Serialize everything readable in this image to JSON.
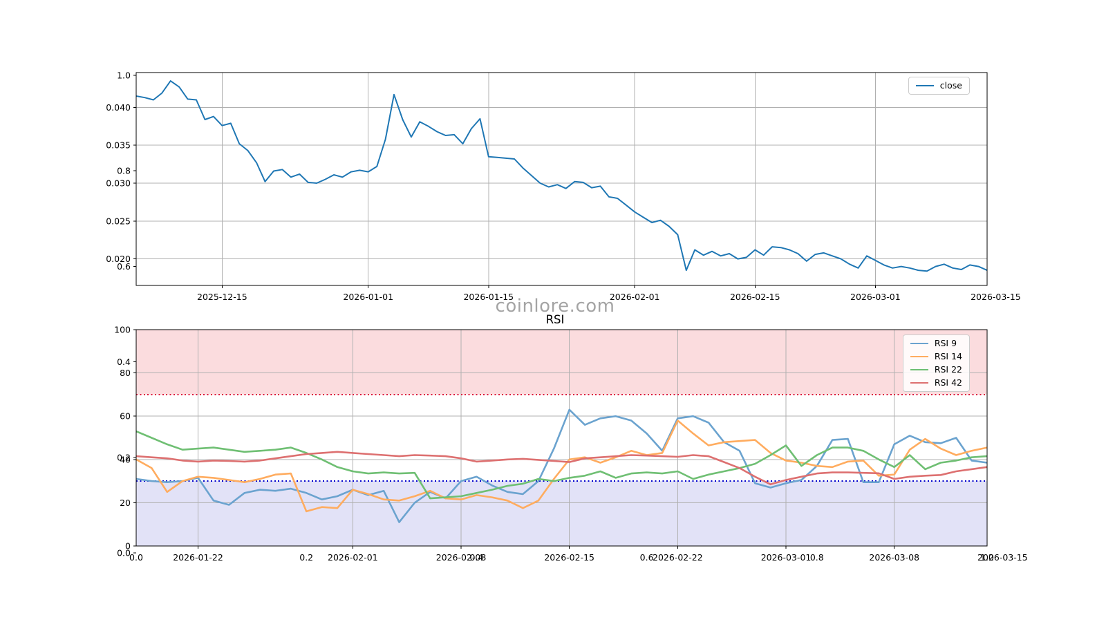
{
  "watermark": "coinlore.com",
  "colors": {
    "background": "#ffffff",
    "grid": "#b0b0b0",
    "spine": "#000000",
    "tick_label": "#000000",
    "watermark": "#8e8e8e",
    "close_line": "#1f77b4",
    "rsi9_line": "#6ba3cf",
    "rsi14_line": "#ffac5f",
    "rsi22_line": "#6fbf73",
    "rsi42_line": "#dd7070",
    "overbought_band": "#fbdcde",
    "oversold_band": "#e2e2f7",
    "overbought_line": "#dc143c",
    "oversold_line": "#0000cd"
  },
  "overlay_axis": {
    "x_ticks": [
      {
        "label": "0.0",
        "value": 0.0
      },
      {
        "label": "0.2",
        "value": 0.2
      },
      {
        "label": "0.4",
        "value": 0.4
      },
      {
        "label": "0.6",
        "value": 0.6
      },
      {
        "label": "0.8",
        "value": 0.8
      },
      {
        "label": "1.0",
        "value": 1.0
      }
    ],
    "y_ticks": [
      {
        "label": "0.0",
        "value": 0.0
      },
      {
        "label": "0.2",
        "value": 0.2
      },
      {
        "label": "0.4",
        "value": 0.4
      },
      {
        "label": "0.6",
        "value": 0.6
      },
      {
        "label": "0.8",
        "value": 0.8
      },
      {
        "label": "1.0",
        "value": 1.0
      }
    ]
  },
  "chart_data": [
    {
      "type": "line",
      "title": "",
      "x_range": [
        "2025-12-05",
        "2026-03-14"
      ],
      "ylim": [
        0.0165,
        0.0446
      ],
      "grid": true,
      "legend_position": "upper right",
      "x_ticks": [
        {
          "label": "2025-12-15",
          "index": 10
        },
        {
          "label": "2026-01-01",
          "index": 27
        },
        {
          "label": "2026-01-15",
          "index": 41
        },
        {
          "label": "2026-02-01",
          "index": 58
        },
        {
          "label": "2026-02-15",
          "index": 72
        },
        {
          "label": "2026-03-01",
          "index": 86
        },
        {
          "label": "2026-03-15",
          "index": 100
        }
      ],
      "y_ticks": [
        {
          "label": "0.020",
          "value": 0.02
        },
        {
          "label": "0.025",
          "value": 0.025
        },
        {
          "label": "0.030",
          "value": 0.03
        },
        {
          "label": "0.035",
          "value": 0.035
        },
        {
          "label": "0.040",
          "value": 0.04
        }
      ],
      "series": [
        {
          "name": "close",
          "color": "#1f77b4",
          "width": 2,
          "values": [
            0.0415,
            0.0413,
            0.041,
            0.0419,
            0.0435,
            0.0427,
            0.0411,
            0.041,
            0.0384,
            0.0388,
            0.0376,
            0.0379,
            0.0352,
            0.0343,
            0.0327,
            0.0302,
            0.0316,
            0.0318,
            0.0308,
            0.0312,
            0.0301,
            0.03,
            0.0305,
            0.0311,
            0.0308,
            0.0315,
            0.0317,
            0.0315,
            0.0322,
            0.0358,
            0.0417,
            0.0384,
            0.0361,
            0.0381,
            0.0375,
            0.0368,
            0.0363,
            0.0364,
            0.0352,
            0.0372,
            0.0385,
            0.0335,
            0.0334,
            0.0333,
            0.0332,
            0.032,
            0.031,
            0.03,
            0.0295,
            0.0298,
            0.0293,
            0.0302,
            0.0301,
            0.0294,
            0.0296,
            0.0282,
            0.028,
            0.0271,
            0.0262,
            0.0255,
            0.0248,
            0.0251,
            0.0243,
            0.0232,
            0.0185,
            0.0212,
            0.0205,
            0.021,
            0.0204,
            0.0207,
            0.02,
            0.0202,
            0.0212,
            0.0205,
            0.0216,
            0.0215,
            0.0212,
            0.0207,
            0.0197,
            0.0206,
            0.0208,
            0.0204,
            0.02,
            0.0193,
            0.0188,
            0.0204,
            0.0198,
            0.0192,
            0.0188,
            0.019,
            0.0188,
            0.0185,
            0.0184,
            0.019,
            0.0193,
            0.0188,
            0.0186,
            0.0192,
            0.019,
            0.0185
          ]
        }
      ]
    },
    {
      "type": "line",
      "title": "RSI",
      "x_range": [
        "2026-01-18",
        "2026-03-14"
      ],
      "ylim": [
        0,
        100
      ],
      "grid": true,
      "legend_position": "upper right",
      "bands": [
        {
          "from": 70,
          "to": 100,
          "color": "#fbdcde",
          "meaning": "overbought"
        },
        {
          "from": 0,
          "to": 30,
          "color": "#e2e2f7",
          "meaning": "oversold"
        }
      ],
      "hlines": [
        {
          "y": 70,
          "color": "#dc143c",
          "style": "dotted"
        },
        {
          "y": 30,
          "color": "#0000cd",
          "style": "dotted"
        }
      ],
      "x_ticks": [
        {
          "label": "2026-01-22",
          "index": 4
        },
        {
          "label": "2026-02-01",
          "index": 14
        },
        {
          "label": "2026-02-08",
          "index": 21
        },
        {
          "label": "2026-02-15",
          "index": 28
        },
        {
          "label": "2026-02-22",
          "index": 35
        },
        {
          "label": "2026-03-01",
          "index": 42
        },
        {
          "label": "2026-03-08",
          "index": 49
        },
        {
          "label": "2026-03-15",
          "index": 56
        }
      ],
      "y_ticks": [
        {
          "label": "0",
          "value": 0
        },
        {
          "label": "20",
          "value": 20
        },
        {
          "label": "40",
          "value": 40
        },
        {
          "label": "60",
          "value": 60
        },
        {
          "label": "80",
          "value": 80
        },
        {
          "label": "100",
          "value": 100
        }
      ],
      "series": [
        {
          "name": "RSI 9",
          "color": "#6ba3cf",
          "width": 2.6,
          "values": [
            31,
            30,
            29.5,
            30,
            31.5,
            21,
            19,
            24.5,
            26,
            25.5,
            26.5,
            24.5,
            21.5,
            23,
            26,
            23.5,
            25.5,
            11,
            20,
            25,
            22,
            30,
            32,
            28,
            25,
            24,
            30,
            45,
            63,
            56,
            59,
            60,
            58,
            52,
            44,
            59,
            60,
            57,
            48,
            44,
            29,
            27,
            29,
            30.5,
            37,
            49,
            49.5,
            29.5,
            29.5,
            47,
            51,
            48,
            47.5,
            50,
            39.5,
            38.5
          ]
        },
        {
          "name": "RSI 14",
          "color": "#ffac5f",
          "width": 2.6,
          "values": [
            40,
            36,
            25,
            30,
            32,
            31.5,
            30.5,
            29.5,
            31,
            33,
            33.5,
            16,
            18,
            17.5,
            26,
            24,
            21.5,
            21,
            23,
            25.5,
            22,
            21.5,
            23.5,
            22.5,
            21,
            17.5,
            21,
            31,
            40,
            41,
            38.5,
            41,
            44,
            42,
            43,
            58,
            52,
            46.5,
            48,
            48.5,
            49,
            43,
            39.5,
            38.5,
            37,
            36.5,
            39,
            39.5,
            32.5,
            33,
            44.5,
            49.5,
            45,
            42,
            44,
            45.5
          ]
        },
        {
          "name": "RSI 22",
          "color": "#6fbf73",
          "width": 2.6,
          "values": [
            53,
            50,
            47,
            44.5,
            45,
            45.5,
            44.5,
            43.5,
            44,
            44.5,
            45.5,
            43,
            40,
            36.5,
            34.5,
            33.5,
            34,
            33.5,
            33.8,
            22,
            22.5,
            23,
            24.5,
            26,
            27.8,
            28.8,
            31,
            30,
            31.5,
            32.5,
            34.5,
            31.5,
            33.5,
            34,
            33.5,
            34.5,
            31,
            33,
            34.5,
            36,
            38,
            42,
            46.5,
            37,
            42,
            45.5,
            45.5,
            44,
            40,
            36.5,
            42,
            35.5,
            38.5,
            39.5,
            41,
            41.5
          ]
        },
        {
          "name": "RSI 42",
          "color": "#dd7070",
          "width": 2.6,
          "values": [
            41.5,
            41,
            40.5,
            39.5,
            39,
            39.5,
            39.3,
            39,
            39.5,
            40.5,
            41.5,
            42.5,
            43,
            43.5,
            43,
            42.5,
            42,
            41.5,
            42,
            41.8,
            41.5,
            40.5,
            39,
            39.5,
            40,
            40.3,
            39.8,
            39.3,
            38.8,
            40.5,
            41,
            41.5,
            42,
            41.8,
            41.5,
            41.2,
            42,
            41.5,
            38.8,
            36,
            32,
            28.5,
            30.5,
            32,
            33.5,
            34,
            34,
            33.8,
            33.6,
            31,
            32,
            32.5,
            32.8,
            34.5,
            35.5,
            36.5
          ]
        }
      ]
    }
  ]
}
